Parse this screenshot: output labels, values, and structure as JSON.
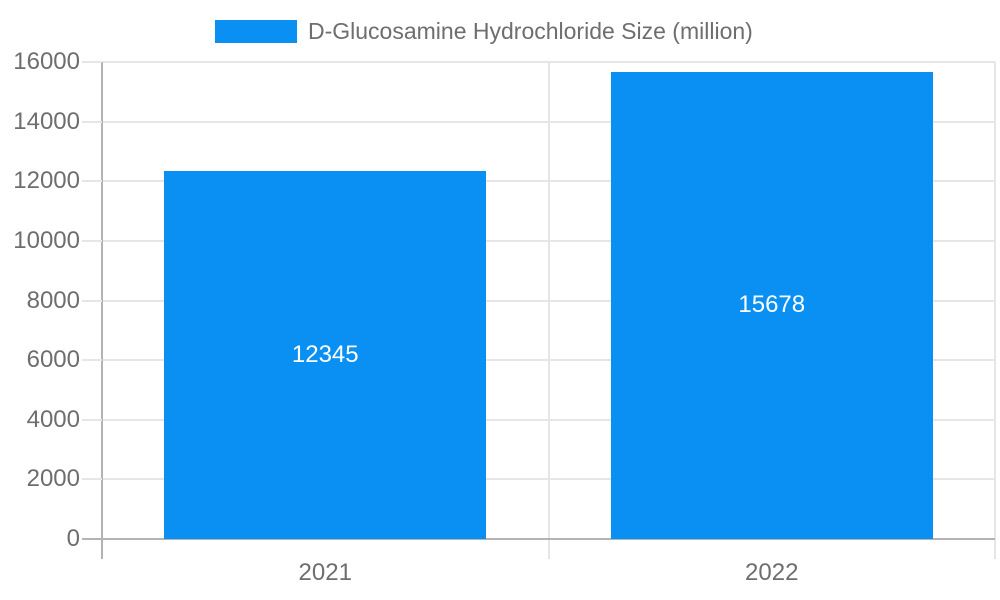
{
  "chart_data": {
    "type": "bar",
    "title": "",
    "legend": "D-Glucosamine Hydrochloride Size (million)",
    "legend_position": "top",
    "categories": [
      "2021",
      "2022"
    ],
    "series": [
      {
        "name": "D-Glucosamine Hydrochloride Size (million)",
        "values": [
          12345,
          15678
        ]
      }
    ],
    "data_labels": [
      "12345",
      "15678"
    ],
    "xlabel": "",
    "ylabel": "",
    "ylim": [
      0,
      16000
    ],
    "ytick_step": 2000,
    "yticks": [
      "0",
      "2000",
      "4000",
      "6000",
      "8000",
      "10000",
      "12000",
      "14000",
      "16000"
    ],
    "grid": true,
    "colors": {
      "bar": "#0a90f2",
      "bar_label_text": "#ffffff",
      "axis_text": "#6e6e6e",
      "gridline": "#e6e6e6",
      "axis_line": "#b3b3b3",
      "background": "#ffffff"
    }
  }
}
